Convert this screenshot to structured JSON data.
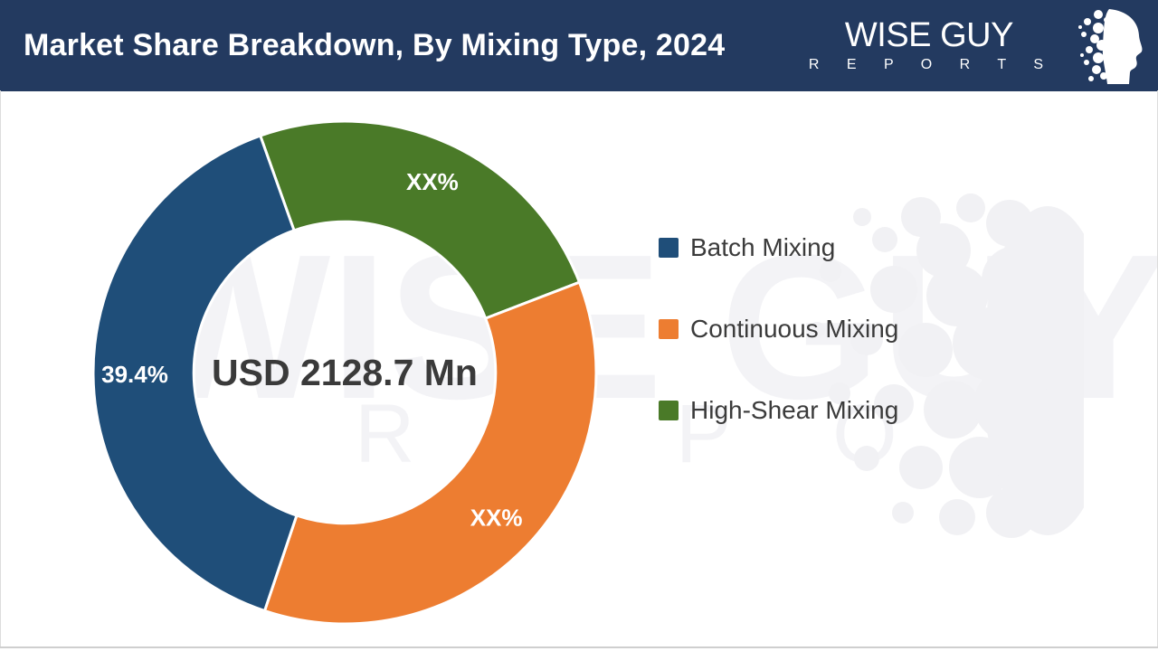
{
  "header": {
    "title": "Market Share Breakdown, By Mixing Type, 2024",
    "logo": {
      "primary": "WISE GUY",
      "secondary": "REPORTS"
    }
  },
  "watermark": {
    "primary": "WISE GUY",
    "secondary": "REPORTS"
  },
  "chart_data": {
    "type": "donut",
    "title": "Market Share Breakdown, By Mixing Type, 2024",
    "center_label": "USD 2128.7 Mn",
    "start_angle_deg": -19.6,
    "inner_radius_ratio": 0.6,
    "segments": [
      {
        "name": "High-Shear Mixing",
        "label": "XX%",
        "fraction": 0.246,
        "color": "#4A7A28"
      },
      {
        "name": "Continuous Mixing",
        "label": "XX%",
        "fraction": 0.36,
        "color": "#ED7D31"
      },
      {
        "name": "Batch Mixing",
        "label": "39.4%",
        "fraction": 0.394,
        "color": "#1F4E79"
      }
    ],
    "legend_position": "right"
  },
  "legend": {
    "items": [
      {
        "label": "Batch Mixing",
        "color": "#1F4E79"
      },
      {
        "label": "Continuous Mixing",
        "color": "#ED7D31"
      },
      {
        "label": "High-Shear Mixing",
        "color": "#4A7A28"
      }
    ]
  },
  "colors": {
    "header_bg": "#233A60",
    "segment_blue": "#1F4E79",
    "segment_orange": "#ED7D31",
    "segment_green": "#4A7A28",
    "center_text": "#3A3A3A",
    "legend_text": "#3B3B3B",
    "watermark": "#F3F3F6",
    "bottom_rule": "#CFCFCF"
  }
}
